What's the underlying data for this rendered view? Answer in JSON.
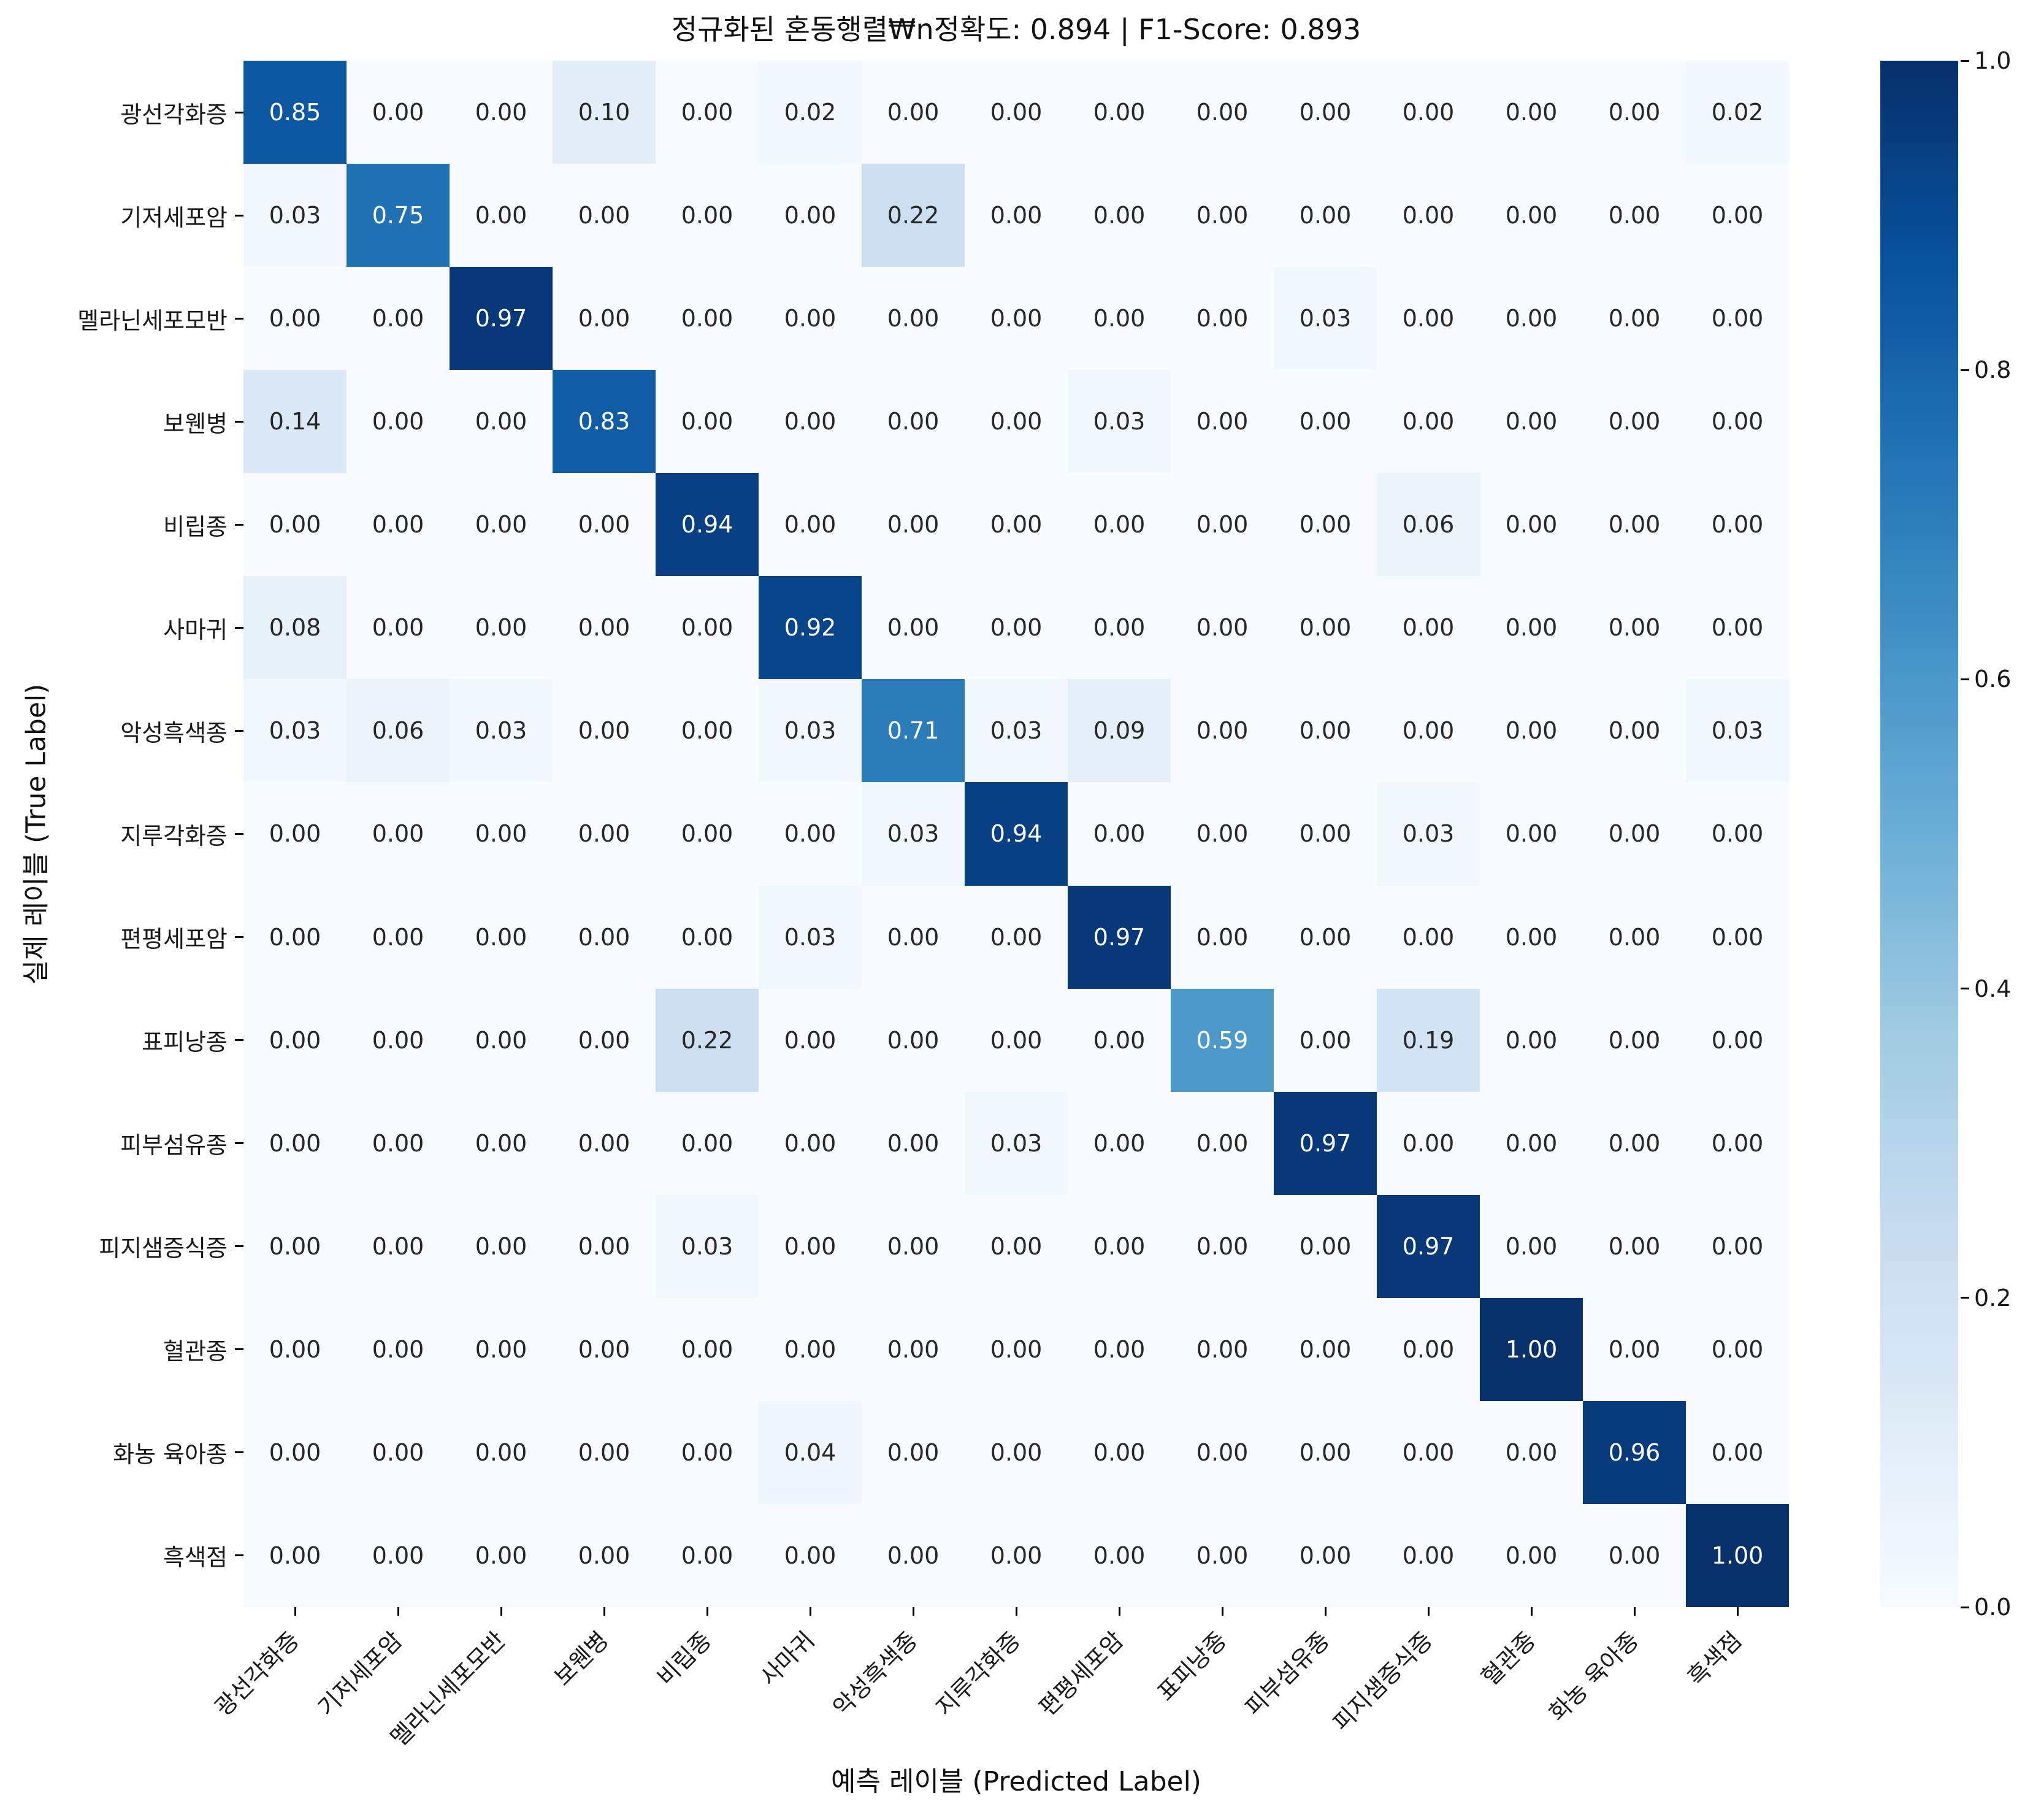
{
  "title": "정규화된 혼동행렬₩n정확도: 0.894 | F1-Score: 0.893",
  "chart_data": {
    "type": "heatmap",
    "title": "정규화된 혼동행렬₩n정확도: 0.894 | F1-Score: 0.893",
    "accuracy": "0.894",
    "f1_score": "0.893",
    "xlabel": "예측 레이블 (Predicted Label)",
    "ylabel": "실제 레이블 (True Label)",
    "categories": [
      "광선각화증",
      "기저세포암",
      "멜라닌세포모반",
      "보웬병",
      "비립종",
      "사마귀",
      "악성흑색종",
      "지루각화증",
      "편평세포암",
      "표피낭종",
      "피부섬유종",
      "피지샘증식증",
      "혈관종",
      "화농 육아종",
      "흑색점"
    ],
    "matrix": [
      [
        0.85,
        0.0,
        0.0,
        0.1,
        0.0,
        0.02,
        0.0,
        0.0,
        0.0,
        0.0,
        0.0,
        0.0,
        0.0,
        0.0,
        0.02
      ],
      [
        0.03,
        0.75,
        0.0,
        0.0,
        0.0,
        0.0,
        0.22,
        0.0,
        0.0,
        0.0,
        0.0,
        0.0,
        0.0,
        0.0,
        0.0
      ],
      [
        0.0,
        0.0,
        0.97,
        0.0,
        0.0,
        0.0,
        0.0,
        0.0,
        0.0,
        0.0,
        0.03,
        0.0,
        0.0,
        0.0,
        0.0
      ],
      [
        0.14,
        0.0,
        0.0,
        0.83,
        0.0,
        0.0,
        0.0,
        0.0,
        0.03,
        0.0,
        0.0,
        0.0,
        0.0,
        0.0,
        0.0
      ],
      [
        0.0,
        0.0,
        0.0,
        0.0,
        0.94,
        0.0,
        0.0,
        0.0,
        0.0,
        0.0,
        0.0,
        0.06,
        0.0,
        0.0,
        0.0
      ],
      [
        0.08,
        0.0,
        0.0,
        0.0,
        0.0,
        0.92,
        0.0,
        0.0,
        0.0,
        0.0,
        0.0,
        0.0,
        0.0,
        0.0,
        0.0
      ],
      [
        0.03,
        0.06,
        0.03,
        0.0,
        0.0,
        0.03,
        0.71,
        0.03,
        0.09,
        0.0,
        0.0,
        0.0,
        0.0,
        0.0,
        0.03
      ],
      [
        0.0,
        0.0,
        0.0,
        0.0,
        0.0,
        0.0,
        0.03,
        0.94,
        0.0,
        0.0,
        0.0,
        0.03,
        0.0,
        0.0,
        0.0
      ],
      [
        0.0,
        0.0,
        0.0,
        0.0,
        0.0,
        0.03,
        0.0,
        0.0,
        0.97,
        0.0,
        0.0,
        0.0,
        0.0,
        0.0,
        0.0
      ],
      [
        0.0,
        0.0,
        0.0,
        0.0,
        0.22,
        0.0,
        0.0,
        0.0,
        0.0,
        0.59,
        0.0,
        0.19,
        0.0,
        0.0,
        0.0
      ],
      [
        0.0,
        0.0,
        0.0,
        0.0,
        0.0,
        0.0,
        0.0,
        0.03,
        0.0,
        0.0,
        0.97,
        0.0,
        0.0,
        0.0,
        0.0
      ],
      [
        0.0,
        0.0,
        0.0,
        0.0,
        0.03,
        0.0,
        0.0,
        0.0,
        0.0,
        0.0,
        0.0,
        0.97,
        0.0,
        0.0,
        0.0
      ],
      [
        0.0,
        0.0,
        0.0,
        0.0,
        0.0,
        0.0,
        0.0,
        0.0,
        0.0,
        0.0,
        0.0,
        0.0,
        1.0,
        0.0,
        0.0
      ],
      [
        0.0,
        0.0,
        0.0,
        0.0,
        0.0,
        0.04,
        0.0,
        0.0,
        0.0,
        0.0,
        0.0,
        0.0,
        0.0,
        0.96,
        0.0
      ],
      [
        0.0,
        0.0,
        0.0,
        0.0,
        0.0,
        0.0,
        0.0,
        0.0,
        0.0,
        0.0,
        0.0,
        0.0,
        0.0,
        0.0,
        1.0
      ]
    ],
    "vmin": 0,
    "vmax": 1,
    "colormap": "Blues",
    "colorbar_ticks": [
      "1.0",
      "0.8",
      "0.6",
      "0.4",
      "0.2",
      "0.0"
    ],
    "colorbar_position": "right",
    "grid": false
  },
  "colors": {
    "background": "#ffffff",
    "colormap_stops": [
      "#f7fbff",
      "#deebf7",
      "#c6dbef",
      "#9ecae1",
      "#6baed6",
      "#4292c6",
      "#2171b5",
      "#08519c",
      "#08306b"
    ],
    "annot_dark_text": "#262626",
    "annot_light_text": "#ffffff",
    "tick_color": "#000000"
  }
}
